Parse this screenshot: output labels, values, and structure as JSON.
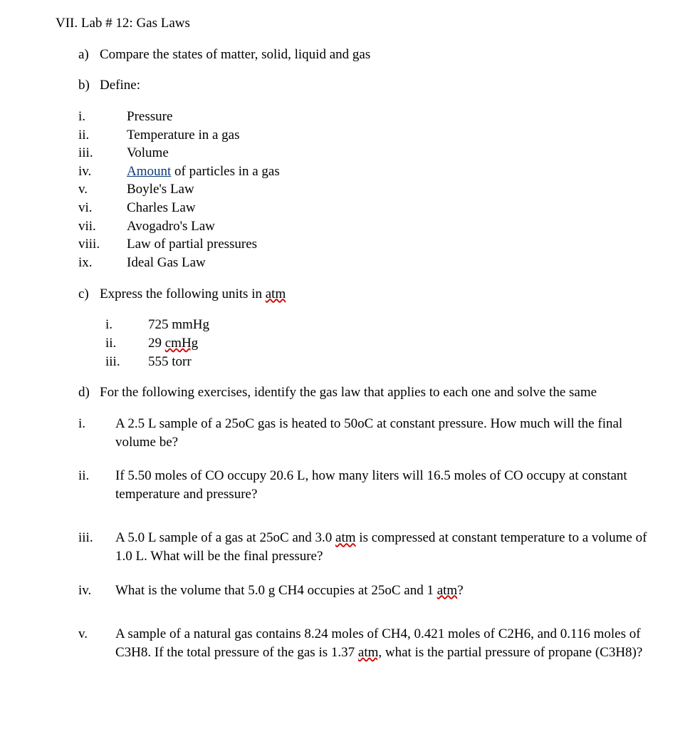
{
  "header": "VII. Lab # 12: Gas Laws",
  "a": {
    "letter": "a)",
    "text": "Compare the states of matter, solid, liquid and gas"
  },
  "b": {
    "letter": "b)",
    "text": "Define:",
    "items": [
      {
        "rn": "i.",
        "text": "Pressure"
      },
      {
        "rn": "ii.",
        "text": "Temperature in a gas"
      },
      {
        "rn": "iii.",
        "text": "Volume"
      },
      {
        "rn": "iv.",
        "pre": "",
        "link": "Amount",
        "post": " of particles in a gas"
      },
      {
        "rn": "v.",
        "text": " Boyle's Law"
      },
      {
        "rn": "vi.",
        "text": "Charles Law"
      },
      {
        "rn": "vii.",
        "text": "Avogadro's Law"
      },
      {
        "rn": "viii.",
        "text": "Law of partial pressures"
      },
      {
        "rn": "ix.",
        "text": "Ideal Gas Law"
      }
    ]
  },
  "c": {
    "letter": "c)",
    "pre": "Express the following units in ",
    "red": "atm",
    "items": [
      {
        "rn": "i.",
        "text": "725 mmHg"
      },
      {
        "rn": "ii.",
        "pre": "29 ",
        "red": "cmHg"
      },
      {
        "rn": "iii.",
        "text": "555 torr"
      }
    ]
  },
  "d": {
    "letter": "d)",
    "text": "For the following exercises, identify the gas law that applies to each one and solve the same",
    "items": [
      {
        "rn": "i.",
        "plain": "A 2.5 L sample of a 25oC gas is heated to 50oC at constant pressure. How much will the final volume be?"
      },
      {
        "rn": "ii.",
        "plain": "If 5.50 moles of CO occupy 20.6 L, how many liters will 16.5 moles of CO occupy at constant temperature and pressure?"
      },
      {
        "rn": "iii.",
        "p0": "A 5.0 L sample of a gas at 25oC and 3.0 ",
        "r0": "atm",
        "p1": " is compressed at constant temperature to a volume of 1.0 L. What will be the final pressure?"
      },
      {
        "rn": "iv.",
        "p0": " What is the volume that 5.0 g CH4 occupies at 25oC and 1 ",
        "r0": "atm",
        "p1": "?"
      },
      {
        "rn": "v.",
        "p0": "A sample of a natural gas contains 8.24 moles of CH4, 0.421 moles of C2H6, and 0.116 moles of C3H8. If the total pressure of the gas is 1.37 ",
        "r0": "atm,",
        "p1": " what is the partial pressure of propane (C3H8)?"
      }
    ]
  },
  "colors": {
    "text": "#000000",
    "bg": "#ffffff",
    "red_underline": "#d40000",
    "link": "#0b3c7a"
  },
  "typography": {
    "font_family": "Times New Roman",
    "font_size_pt": 14
  }
}
